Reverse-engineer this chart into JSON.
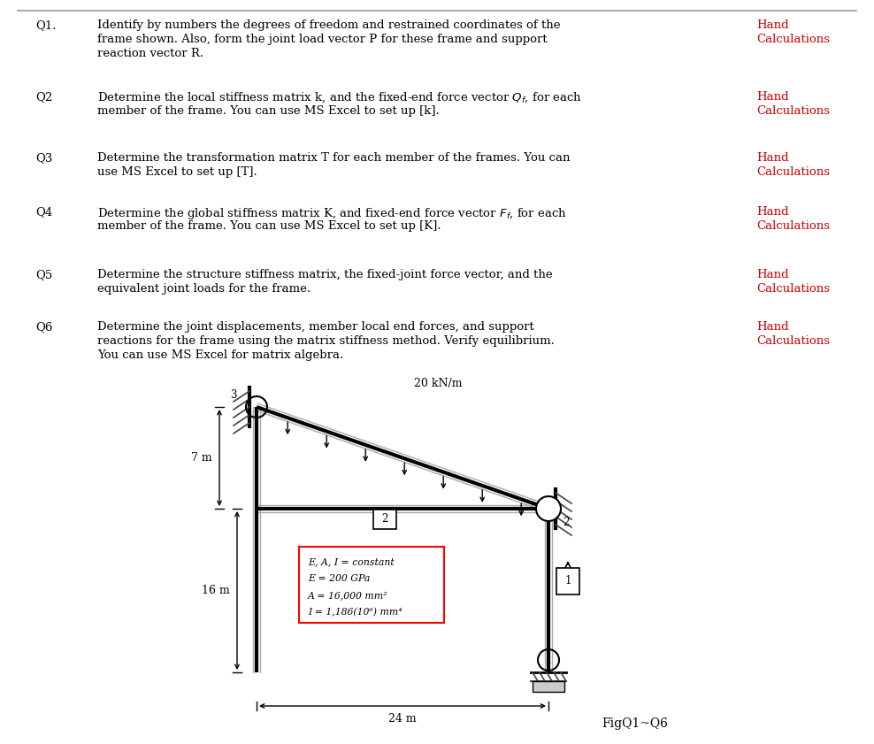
{
  "background_color": "#ffffff",
  "questions": [
    {
      "label": "Q1.",
      "text_lines": [
        "Identify by numbers the degrees of freedom and restrained coordinates of the",
        "frame shown. Also, form the joint load vector P for these frame and support",
        "reaction vector R."
      ],
      "tag": [
        "Hand",
        "Calculations"
      ]
    },
    {
      "label": "Q2",
      "text_lines": [
        "Determine the local stiffness matrix k, and the fixed-end force vector $Q_f$, for each",
        "member of the frame. You can use MS Excel to set up [k]."
      ],
      "tag": [
        "Hand",
        "Calculations"
      ]
    },
    {
      "label": "Q3",
      "text_lines": [
        "Determine the transformation matrix T for each member of the frames. You can",
        "use MS Excel to set up [T]."
      ],
      "tag": [
        "Hand",
        "Calculations"
      ]
    },
    {
      "label": "Q4",
      "text_lines": [
        "Determine the global stiffness matrix K, and fixed-end force vector $F_f$, for each",
        "member of the frame. You can use MS Excel to set up [K]."
      ],
      "tag": [
        "Hand",
        "Calculations"
      ]
    },
    {
      "label": "Q5",
      "text_lines": [
        "Determine the structure stiffness matrix, the fixed-joint force vector, and the",
        "equivalent joint loads for the frame."
      ],
      "tag": [
        "Hand",
        "Calculations"
      ]
    },
    {
      "label": "Q6",
      "text_lines": [
        "Determine the joint displacements, member local end forces, and support",
        "reactions for the frame using the matrix stiffness method. Verify equilibrium.",
        "You can use MS Excel for matrix algebra."
      ],
      "tag": [
        "Hand",
        "Calculations"
      ]
    }
  ],
  "fig_caption": "FigQ1~Q6",
  "frame_label_7m": "7 m",
  "frame_label_16m": "16 m",
  "frame_label_24m": "24 m",
  "frame_load": "20 kN/m",
  "info_line1": "E, A, I = constant",
  "info_line2": "E = 200 GPa",
  "info_line3": "A = 16,000 mm²",
  "info_line4": "I = 1,186(10⁶) mm⁴",
  "text_color": "#000000",
  "red_color": "#cc0000",
  "dark_gray": "#444444",
  "mid_gray": "#777777"
}
